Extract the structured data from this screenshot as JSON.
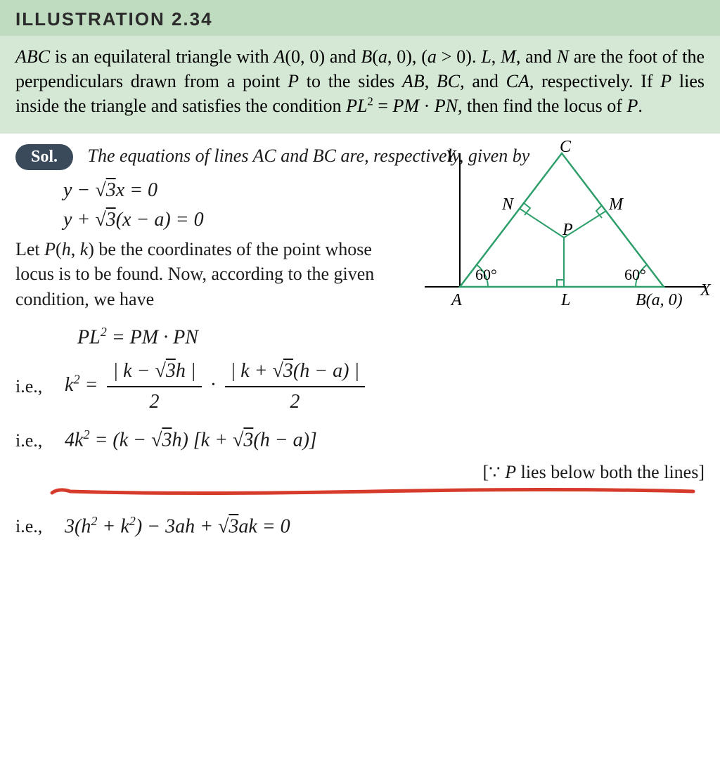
{
  "header": "Illustration 2.34",
  "problem_html": "<i>ABC</i> is an equilateral triangle with <i>A</i>(0,&nbsp;0) and <i>B</i>(<i>a</i>,&nbsp;0), (<i>a</i>&nbsp;&gt;&nbsp;0). <i>L</i>, <i>M</i>, and <i>N</i> are the foot of the perpendiculars drawn from a point <i>P</i> to the sides <i>AB</i>, <i>BC</i>, and <i>CA</i>, respectively. If <i>P</i> lies inside the triangle and satisfies the condition <i>PL</i><sup>2</sup>&nbsp;=&nbsp;<i>PM</i>&nbsp;&middot;&nbsp;<i>PN</i>, then find the locus of <i>P</i>.",
  "sol_label": "Sol.",
  "sol_intro": "The equations of lines <i>AC</i> and <i>BC</i> are, respectively, given by",
  "eq1": "y &minus; &radic;<span style='text-decoration:overline'>3</span>x = 0",
  "eq2": "y + &radic;<span style='text-decoration:overline'>3</span>(x &minus; a) = 0",
  "para1": "Let <i>P</i>(<i>h</i>,&nbsp;<i>k</i>) be the coordinates of the point whose locus is to be found. Now, according to the given condition, we have",
  "eq3": "PL<sup>2</sup> = PM &middot; PN",
  "ie": "i.e.,",
  "frac_line": {
    "lhs": "k<sup>2</sup> =",
    "num1": "| k &minus; &radic;<span style='text-decoration:overline'>3</span>h |",
    "den1": "2",
    "mid": "&middot;",
    "num2": "| k + &radic;<span style='text-decoration:overline'>3</span>(h &minus; a) |",
    "den2": "2"
  },
  "eq5": "4k<sup>2</sup> = (k &minus; &radic;<span style='text-decoration:overline'>3</span>h) [k + &radic;<span style='text-decoration:overline'>3</span>(h &minus; a)]",
  "note": "[&#8757; <i>P</i> lies below both the lines]",
  "eq6": "3(h<sup>2</sup> + k<sup>2</sup>) &minus; 3ah + &radic;<span style='text-decoration:overline'>3</span>ak = 0",
  "diagram": {
    "stroke": "#2e9f6a",
    "text_color": "#1a1a1a",
    "angle_label": "60°",
    "labels": {
      "Y": "Y",
      "X": "X",
      "A": "A",
      "B": "B(a, 0)",
      "C": "C",
      "L": "L",
      "M": "M",
      "N": "N",
      "P": "P"
    },
    "underline_color": "#d63a2a"
  },
  "colors": {
    "header_bg": "#c0dcc0",
    "problem_bg": "#d5e8d5",
    "sol_pill_bg": "#3a4a5a"
  }
}
